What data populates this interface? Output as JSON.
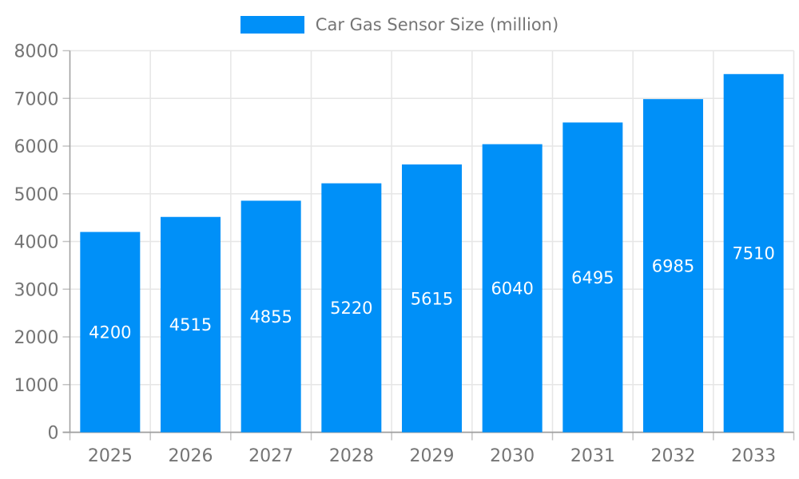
{
  "legend": {
    "position": "top-center"
  },
  "chart_data": {
    "type": "bar",
    "title": "Car Gas Sensor Size (million)",
    "categories": [
      "2025",
      "2026",
      "2027",
      "2028",
      "2029",
      "2030",
      "2031",
      "2032",
      "2033"
    ],
    "values": [
      4200,
      4515,
      4855,
      5220,
      5615,
      6040,
      6495,
      6985,
      7510
    ],
    "xlabel": "",
    "ylabel": "",
    "ylim": [
      0,
      8000
    ],
    "ytick_step": 1000,
    "ytick_labels": [
      "0",
      "1000",
      "2000",
      "3000",
      "4000",
      "5000",
      "6000",
      "7000",
      "8000"
    ],
    "grid": true,
    "legend_position": "top-center",
    "value_labels_inside_bars": true,
    "colors": {
      "bar": "#0090F8",
      "value_label": "#ffffff",
      "axis_text": "#757575",
      "gridline": "#e6e6e6",
      "axis_line": "#9e9e9e",
      "tick": "#c2c2c2",
      "background": "#ffffff"
    }
  }
}
